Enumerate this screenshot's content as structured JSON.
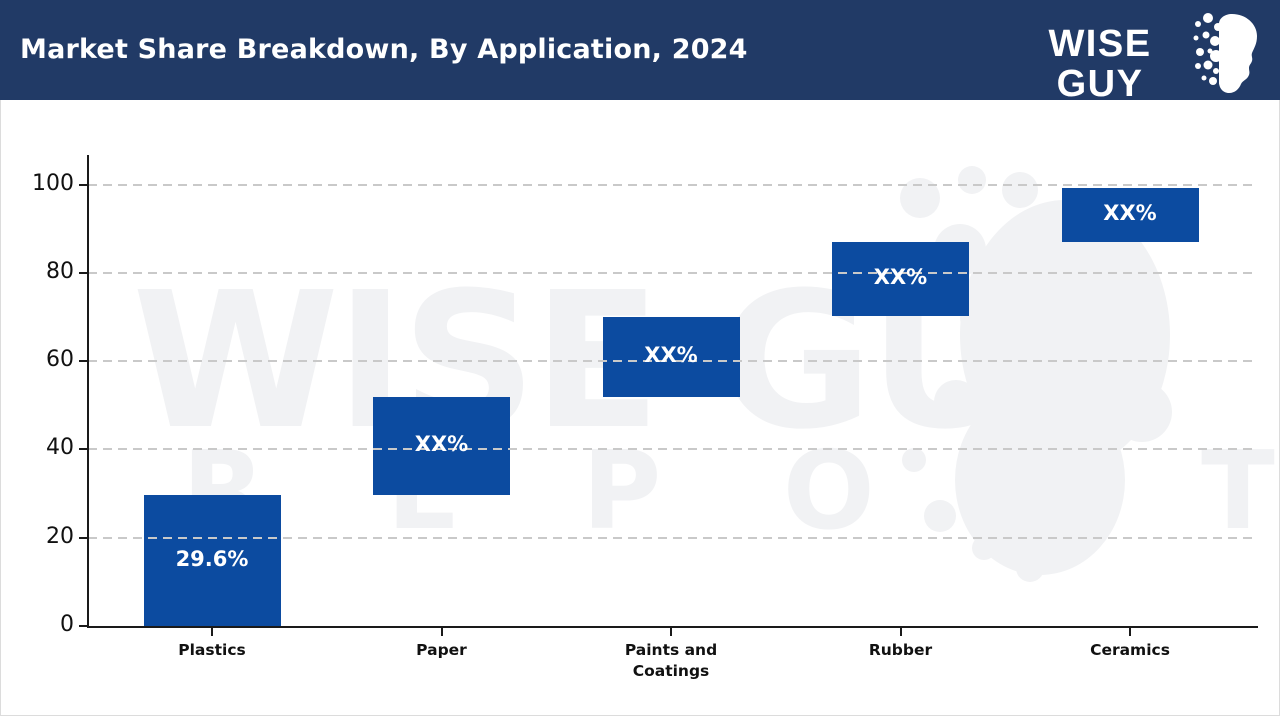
{
  "header": {
    "title": "Market Share Breakdown, By Application, 2024",
    "logo": {
      "line1": "WISE GUY",
      "line2": "R E P O R T S"
    }
  },
  "watermark": {
    "line1": "WISE GUY",
    "line2": "R E P O R T S"
  },
  "colors": {
    "header_bg": "#213a66",
    "bar_blue": "#0c4ba0",
    "gridline": "#c9c9c9",
    "axis": "#1a1a1a",
    "watermark": "#f1f2f4",
    "bar_label_text": "#ffffff"
  },
  "chart_data": {
    "type": "bar",
    "subtype": "waterfall-floating-bars",
    "title": "Market Share Breakdown, By Application, 2024",
    "categories": [
      "Plastics",
      "Paper",
      "Paints and\nCoatings",
      "Rubber",
      "Ceramics"
    ],
    "segments": [
      [
        0,
        29.6
      ],
      [
        29.6,
        51.8
      ],
      [
        51.8,
        70.1
      ],
      [
        70.3,
        86.9
      ],
      [
        87.0,
        99.3
      ]
    ],
    "values": [
      29.6,
      22.2,
      18.3,
      16.6,
      12.3
    ],
    "bar_labels": [
      "29.6%",
      "XX%",
      "XX%",
      "XX%",
      "XX%"
    ],
    "xlabel": "",
    "ylabel": "",
    "ylim": [
      0,
      106
    ],
    "yticks": [
      0,
      20,
      40,
      60,
      80,
      100
    ],
    "grid": "horizontal dashed, drawn above bars",
    "legend": "none"
  }
}
